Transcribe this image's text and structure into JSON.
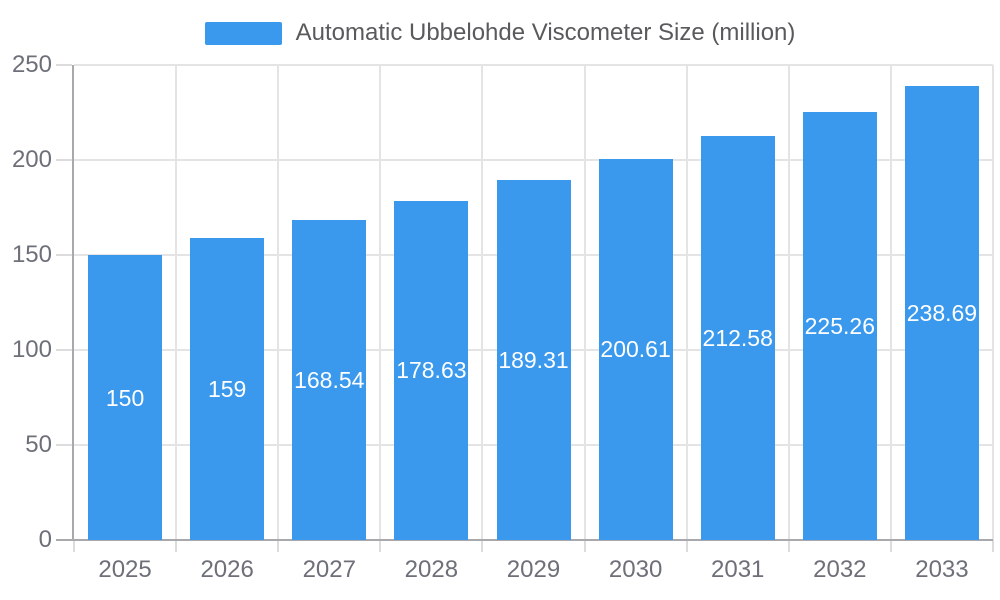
{
  "chart_data": {
    "type": "bar",
    "title": "Automatic Ubbelohde Viscometer Size (million)",
    "legend": [
      "Automatic Ubbelohde Viscometer Size (million)"
    ],
    "legend_position": "top",
    "categories": [
      "2025",
      "2026",
      "2027",
      "2028",
      "2029",
      "2030",
      "2031",
      "2032",
      "2033"
    ],
    "values": [
      150,
      159,
      168.54,
      178.63,
      189.31,
      200.61,
      212.58,
      225.26,
      238.69
    ],
    "value_labels": [
      "150",
      "159",
      "168.54",
      "178.63",
      "189.31",
      "200.61",
      "212.58",
      "225.26",
      "238.69"
    ],
    "xlabel": "",
    "ylabel": "",
    "ylim": [
      0,
      250
    ],
    "yticks": [
      0,
      50,
      100,
      150,
      200,
      250
    ],
    "grid": true,
    "colors": {
      "bar": "#3A99EC",
      "bar_label": "#ffffff",
      "axis_line": "#a9a9ad",
      "grid_line": "#e4e4e4",
      "tick_line": "#dcdcdc",
      "axis_text": "#6e7079",
      "legend_text": "#595a5c",
      "background": "#ffffff"
    }
  }
}
